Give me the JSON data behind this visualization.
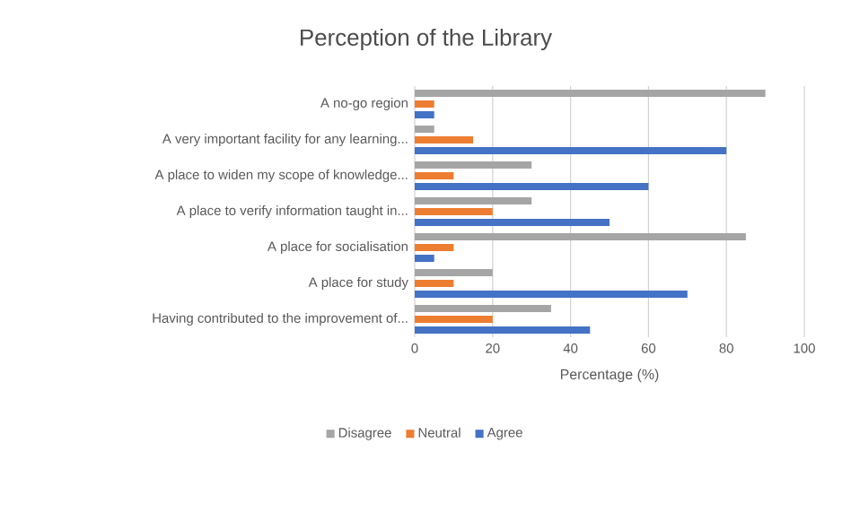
{
  "chart_data": {
    "type": "bar",
    "orientation": "horizontal",
    "title": "Perception of the Library",
    "xlabel": "Percentage (%)",
    "categories": [
      "A no-go region",
      "A very important facility for any learning...",
      "A place to widen my scope of knowledge...",
      "A place to verify information taught in...",
      "A place for socialisation",
      "A place for study",
      "Having contributed to the improvement  of..."
    ],
    "series": [
      {
        "name": "Disagree",
        "color": "#a5a5a5",
        "values": [
          90,
          5,
          30,
          30,
          85,
          20,
          35
        ]
      },
      {
        "name": "Neutral",
        "color": "#ed7d31",
        "values": [
          5,
          15,
          10,
          20,
          10,
          10,
          20
        ]
      },
      {
        "name": "Agree",
        "color": "#4472c4",
        "values": [
          5,
          80,
          60,
          50,
          5,
          70,
          45
        ]
      }
    ],
    "xlim": [
      0,
      100
    ],
    "xticks": [
      0,
      20,
      40,
      60,
      80,
      100
    ],
    "grid": "x",
    "legend": "bottom"
  }
}
